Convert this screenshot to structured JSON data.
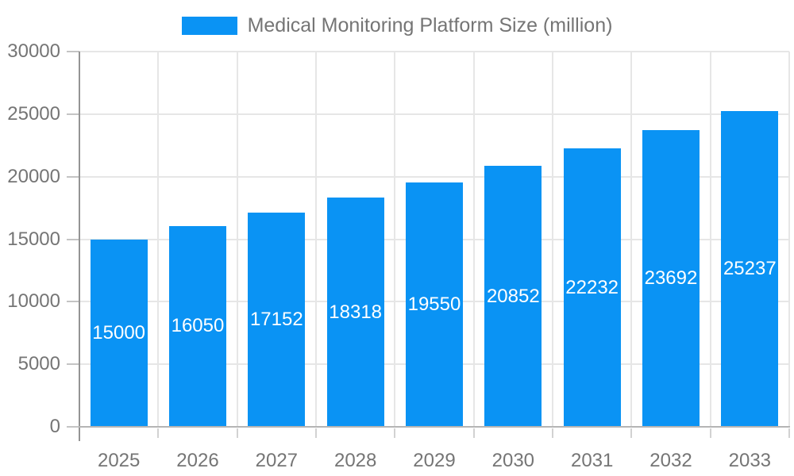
{
  "legend": {
    "label": "Medical Monitoring Platform Size (million)"
  },
  "chart_data": {
    "type": "bar",
    "title": "Medical Monitoring Platform Size (million)",
    "categories": [
      "2025",
      "2026",
      "2027",
      "2028",
      "2029",
      "2030",
      "2031",
      "2032",
      "2033"
    ],
    "values": [
      15000,
      16050,
      17152,
      18318,
      19550,
      20852,
      22232,
      23692,
      25237
    ],
    "xlabel": "",
    "ylabel": "",
    "ylim": [
      0,
      30000
    ],
    "ytick_step": 5000,
    "ytick_labels": [
      "0",
      "5000",
      "10000",
      "15000",
      "20000",
      "25000",
      "30000"
    ],
    "grid": true,
    "legend_position": "top",
    "bar_color": "#0a93f4",
    "value_label_color": "#ffffff",
    "axis_label_color": "#757575",
    "gridline_color": "#e6e6e6",
    "x_axis_line_color": "#b5b5b5",
    "y_axis_line_color": "#949494"
  }
}
